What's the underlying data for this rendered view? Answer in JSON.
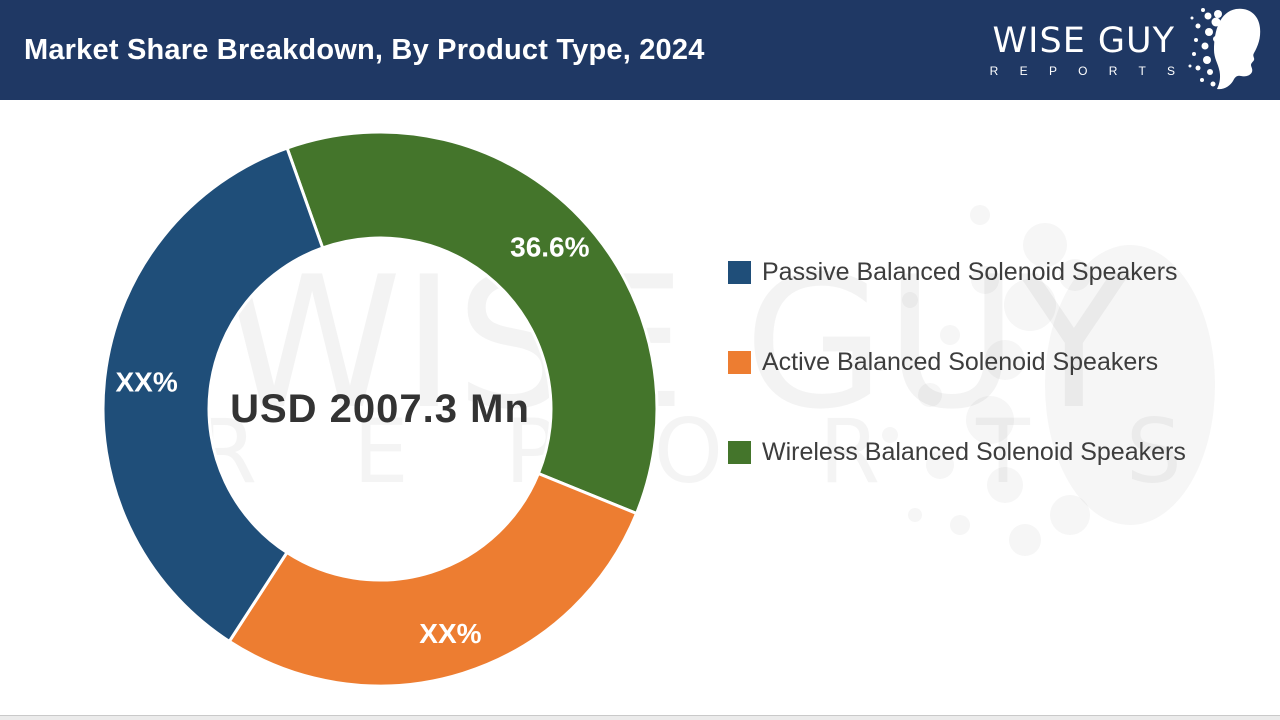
{
  "header": {
    "title": "Market Share Breakdown, By Product Type, 2024",
    "logo": {
      "line1": "WISE GUY",
      "line2": "R E P O R T S"
    }
  },
  "watermark": {
    "line1": "WISE GUY",
    "line2": "R E P O R T S"
  },
  "chart_data": {
    "type": "pie",
    "subtype": "donut",
    "title": "Market Share Breakdown, By Product Type, 2024",
    "center_label": "USD 2007.3 Mn",
    "start_angle_deg": -19.6,
    "legend_position": "right",
    "segments": [
      {
        "name": "Wireless Balanced Solenoid Speakers",
        "label": "36.6%",
        "value": 36.6,
        "color": "#44752B"
      },
      {
        "name": "Active Balanced Solenoid Speakers",
        "label": "XX%",
        "value": 28.0,
        "color": "#ED7D31"
      },
      {
        "name": "Passive Balanced Solenoid Speakers",
        "label": "XX%",
        "value": 35.4,
        "color": "#1F4E79"
      }
    ],
    "legend": [
      {
        "label": "Passive Balanced Solenoid Speakers",
        "color": "#1F4E79"
      },
      {
        "label": "Active Balanced Solenoid Speakers",
        "color": "#ED7D31"
      },
      {
        "label": "Wireless Balanced Solenoid Speakers",
        "color": "#44752B"
      }
    ]
  },
  "colors": {
    "header_bg": "#1F3864",
    "slice_label": "#FFFFFF",
    "center_text": "#333333",
    "legend_text": "#3D3D3D"
  }
}
